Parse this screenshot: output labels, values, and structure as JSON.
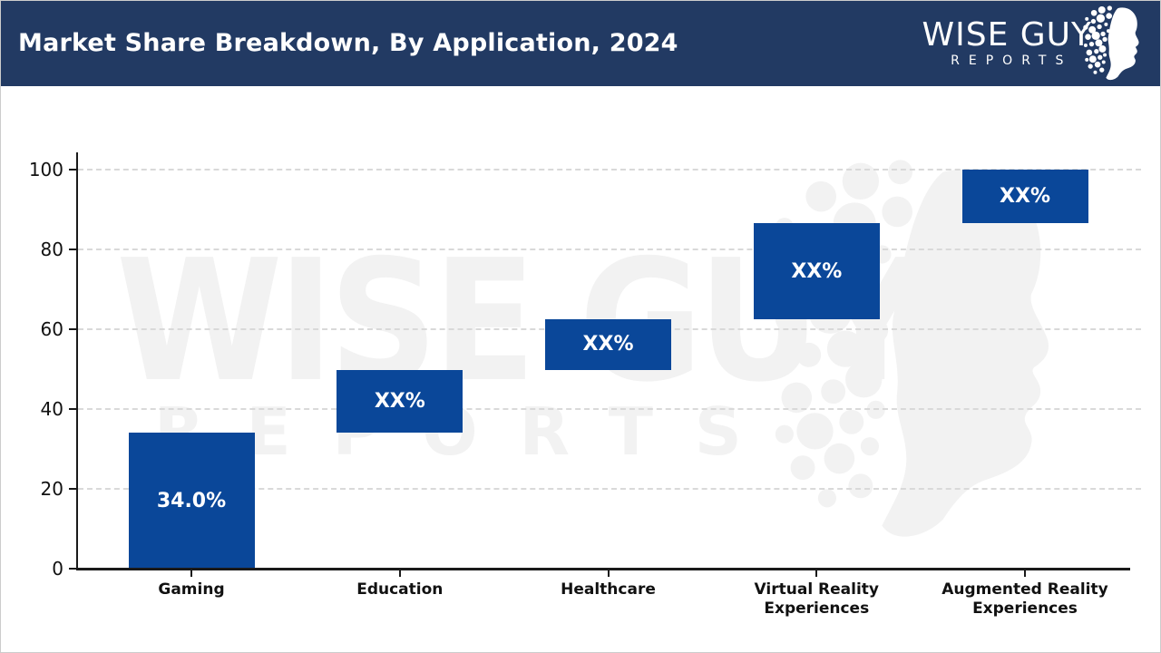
{
  "header": {
    "title": "Market Share Breakdown, By Application, 2024",
    "logo": {
      "line1": "WISE GUY",
      "line2": "REPORTS"
    }
  },
  "watermark": {
    "line1": "WISE GUY",
    "line2": "REPORTS"
  },
  "colors": {
    "header_bg": "#223a63",
    "bar": "#0a4799",
    "grid": "#d9d9d9",
    "axis": "#1a1a1a",
    "tick_text": "#111111",
    "bar_label_text": "#ffffff",
    "watermark": "#f2f2f2"
  },
  "chart_data": {
    "type": "bar",
    "subtype": "waterfall",
    "title": "Market Share Breakdown, By Application, 2024",
    "xlabel": "",
    "ylabel": "",
    "ylim": [
      0,
      100
    ],
    "yticks": [
      0,
      20,
      40,
      60,
      80,
      100
    ],
    "grid": true,
    "legend": false,
    "categories": [
      "Gaming",
      "Education",
      "Healthcare",
      "Virtual Reality Experiences",
      "Augmented Reality Experiences"
    ],
    "categories_display": [
      [
        "Gaming"
      ],
      [
        "Education"
      ],
      [
        "Healthcare"
      ],
      [
        "Virtual Reality",
        "Experiences"
      ],
      [
        "Augmented Reality",
        "Experiences"
      ]
    ],
    "segments": [
      {
        "category": "Gaming",
        "start": 0,
        "end": 34,
        "label": "34.0%"
      },
      {
        "category": "Education",
        "start": 34,
        "end": 49.8,
        "label": "XX%"
      },
      {
        "category": "Healthcare",
        "start": 49.8,
        "end": 62.5,
        "label": "XX%"
      },
      {
        "category": "Virtual Reality Experiences",
        "start": 62.5,
        "end": 86.5,
        "label": "XX%"
      },
      {
        "category": "Augmented Reality Experiences",
        "start": 86.5,
        "end": 100,
        "label": "XX%"
      }
    ]
  }
}
